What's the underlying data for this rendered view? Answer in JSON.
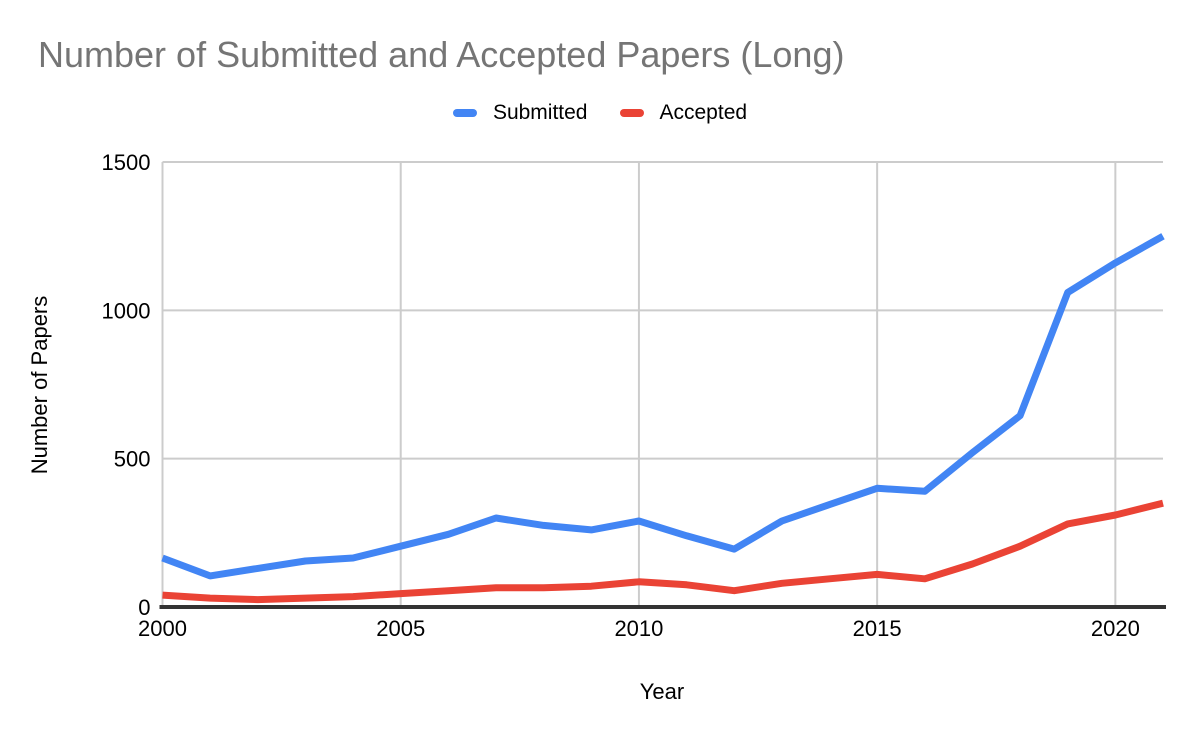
{
  "title": {
    "text": "Number of Submitted and Accepted Papers (Long)",
    "color": "#757575"
  },
  "legend": [
    {
      "label": "Submitted",
      "color": "#4285F4"
    },
    {
      "label": "Accepted",
      "color": "#EA4335"
    }
  ],
  "chart_data": {
    "type": "line",
    "title": "Number of Submitted and Accepted Papers (Long)",
    "xlabel": "Year",
    "ylabel": "Number of Papers",
    "x": [
      2000,
      2001,
      2002,
      2003,
      2004,
      2005,
      2006,
      2007,
      2008,
      2009,
      2010,
      2011,
      2012,
      2013,
      2014,
      2015,
      2016,
      2017,
      2018,
      2019,
      2020,
      2021
    ],
    "series": [
      {
        "name": "Submitted",
        "color": "#4285F4",
        "values": [
          165,
          105,
          130,
          155,
          165,
          205,
          245,
          300,
          275,
          260,
          290,
          240,
          195,
          290,
          345,
          400,
          390,
          520,
          645,
          1060,
          1160,
          1250
        ]
      },
      {
        "name": "Accepted",
        "color": "#EA4335",
        "values": [
          40,
          30,
          25,
          30,
          35,
          45,
          55,
          65,
          65,
          70,
          85,
          75,
          55,
          80,
          95,
          110,
          95,
          145,
          205,
          280,
          310,
          350
        ]
      }
    ],
    "xlim": [
      2000,
      2021
    ],
    "ylim": [
      0,
      1500
    ],
    "x_ticks": [
      2000,
      2005,
      2010,
      2015,
      2020
    ],
    "y_ticks": [
      0,
      500,
      1000,
      1500
    ],
    "grid": true,
    "legend_position": "top"
  },
  "colors": {
    "grid": "#cccccc",
    "axis_line": "#333333",
    "tick_text": "#000000"
  }
}
